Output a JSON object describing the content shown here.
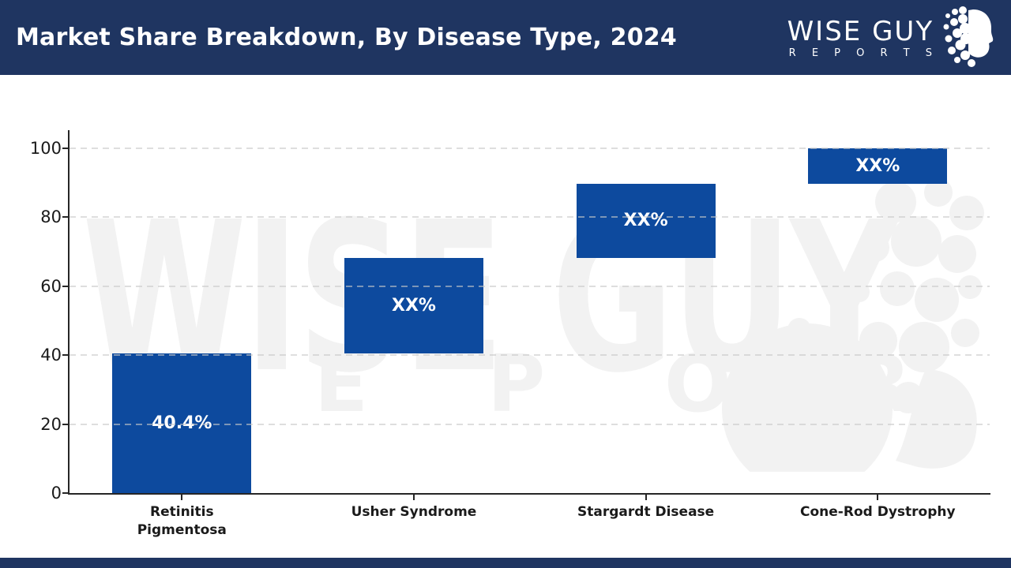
{
  "header": {
    "title": "Market Share Breakdown, By Disease Type, 2024",
    "logo_line1": "WISE GUY",
    "logo_line2": "R E P O R T S"
  },
  "watermark": {
    "line1": "WISE GUY",
    "line2": "R E P O R T S"
  },
  "colors": {
    "header_bg": "#1f3561",
    "footer_bg": "#1f3561",
    "bar_blue": "#0d4a9e",
    "bar_label": "#ffffff",
    "grid_gray": "#d9d9d9",
    "watermark_gray": "#f2f2f2"
  },
  "chart_data": {
    "type": "bar",
    "subtype": "waterfall",
    "title": "Market Share Breakdown, By Disease Type, 2024",
    "xlabel": "",
    "ylabel": "",
    "categories": [
      "Retinitis Pigmentosa",
      "Usher Syndrome",
      "Stargardt Disease",
      "Cone-Rod Dystrophy"
    ],
    "tick_labels": [
      "Retinitis\nPigmentosa",
      "Usher Syndrome",
      "Stargardt Disease",
      "Cone-Rod Dystrophy"
    ],
    "segments": [
      {
        "category": "Retinitis Pigmentosa",
        "start": 0,
        "end": 40.4,
        "label": "40.4%"
      },
      {
        "category": "Usher Syndrome",
        "start": 40.4,
        "end": 68.1,
        "label": "XX%"
      },
      {
        "category": "Stargardt Disease",
        "start": 68.1,
        "end": 89.8,
        "label": "XX%"
      },
      {
        "category": "Cone-Rod Dystrophy",
        "start": 89.8,
        "end": 100,
        "label": "XX%"
      }
    ],
    "y_ticks": [
      0,
      20,
      40,
      60,
      80,
      100
    ],
    "ylim": [
      0,
      105
    ],
    "grid": "horizontal-dashed-over-bars",
    "legend": "none",
    "bar_color": "#0d4a9e",
    "label_color": "#ffffff"
  }
}
